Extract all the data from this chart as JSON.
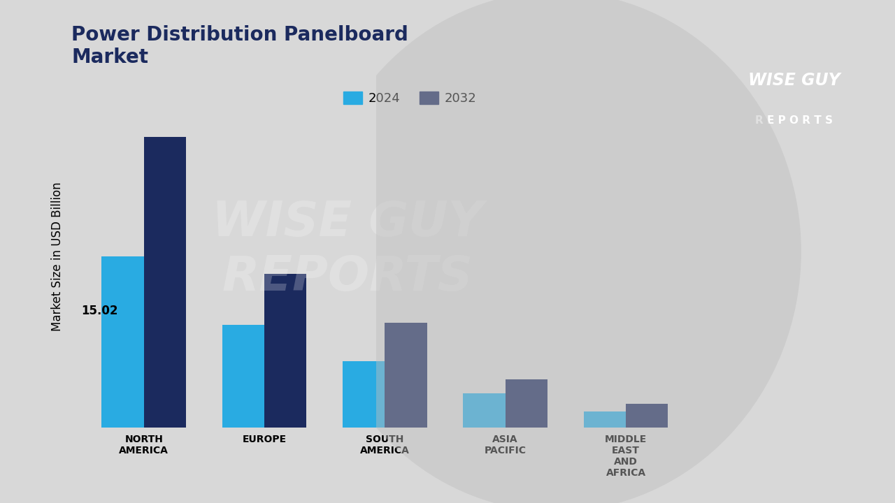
{
  "title": "Power Distribution Panelboard\nMarket",
  "ylabel": "Market Size in USD Billion",
  "categories": [
    "NORTH\nAMERICA",
    "EUROPE",
    "SOUTH\nAMERICA",
    "ASIA\nPACIFIC",
    "MIDDLE\nEAST\nAND\nAFRICA"
  ],
  "values_2024": [
    15.02,
    9.0,
    5.8,
    3.0,
    1.4
  ],
  "values_2032": [
    25.5,
    13.5,
    9.2,
    4.2,
    2.1
  ],
  "color_2024": "#29ABE2",
  "color_2032": "#1B2A5E",
  "annotation_value": "15.02",
  "annotation_category_idx": 0,
  "background_color": "#D8D8D8",
  "right_panel_color": "#1B2A5E",
  "title_color": "#1B2A5E",
  "legend_labels": [
    "2024",
    "2032"
  ],
  "bar_width": 0.35,
  "ylim": [
    0,
    30
  ]
}
